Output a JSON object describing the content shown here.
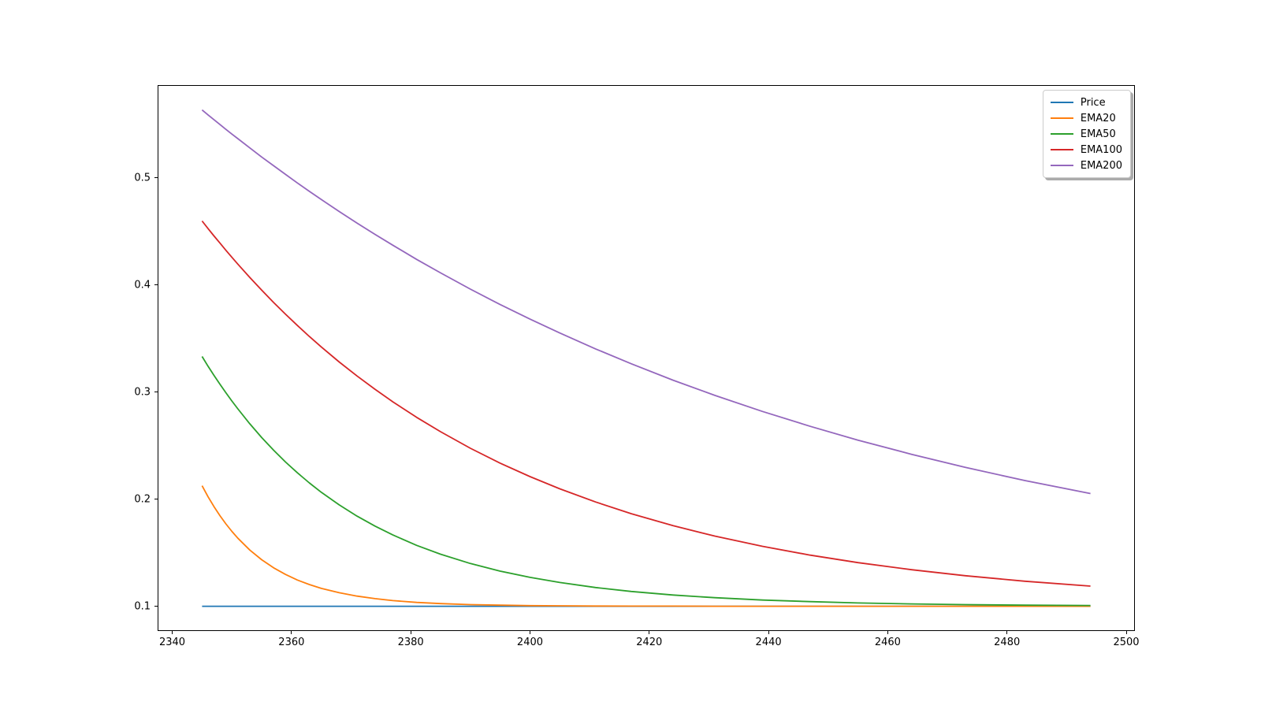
{
  "figure": {
    "background": "#ffffff",
    "spine_color": "#000000",
    "tick_color": "#000000",
    "tick_label_color": "#000000",
    "legend_border_color": "#cccccc",
    "legend_shadow_color": "#ababab",
    "legend_background": "#ffffff"
  },
  "chart_data": {
    "type": "line",
    "title": "",
    "xlabel": "",
    "ylabel": "",
    "grid": false,
    "legend_position": "upper-right",
    "xlim": [
      2337.55,
      2501.45
    ],
    "ylim": [
      0.0769,
      0.5864
    ],
    "x_ticks": [
      {
        "value": 2340,
        "label": "2340"
      },
      {
        "value": 2360,
        "label": "2360"
      },
      {
        "value": 2380,
        "label": "2380"
      },
      {
        "value": 2400,
        "label": "2400"
      },
      {
        "value": 2420,
        "label": "2420"
      },
      {
        "value": 2440,
        "label": "2440"
      },
      {
        "value": 2460,
        "label": "2460"
      },
      {
        "value": 2480,
        "label": "2480"
      },
      {
        "value": 2500,
        "label": "2500"
      }
    ],
    "y_ticks": [
      {
        "value": 0.1,
        "label": "0.1"
      },
      {
        "value": 0.2,
        "label": "0.2"
      },
      {
        "value": 0.3,
        "label": "0.3"
      },
      {
        "value": 0.4,
        "label": "0.4"
      },
      {
        "value": 0.5,
        "label": "0.5"
      }
    ],
    "x": [
      2345,
      2346,
      2347,
      2348,
      2349,
      2350,
      2351,
      2353,
      2355,
      2357,
      2359,
      2361,
      2363,
      2365,
      2368,
      2371,
      2374,
      2377,
      2381,
      2385,
      2390,
      2395,
      2400,
      2405,
      2411,
      2417,
      2424,
      2431,
      2439,
      2447,
      2455,
      2464,
      2473,
      2483,
      2494
    ],
    "series": [
      {
        "name": "Price",
        "color": "#1f77b4",
        "values": [
          0.1,
          0.1,
          0.1,
          0.1,
          0.1,
          0.1,
          0.1,
          0.1,
          0.1,
          0.1,
          0.1,
          0.1,
          0.1,
          0.1,
          0.1,
          0.1,
          0.1,
          0.1,
          0.1,
          0.1,
          0.1,
          0.1,
          0.1,
          0.1,
          0.1,
          0.1,
          0.1,
          0.1,
          0.1,
          0.1,
          0.1,
          0.1,
          0.1,
          0.1,
          0.1
        ]
      },
      {
        "name": "EMA20",
        "color": "#ff7f0e",
        "values": [
          0.2125,
          0.2023,
          0.193,
          0.1845,
          0.1769,
          0.1699,
          0.1635,
          0.1525,
          0.1434,
          0.1359,
          0.1297,
          0.1245,
          0.1203,
          0.1167,
          0.1126,
          0.1095,
          0.1071,
          0.1053,
          0.1036,
          0.1025,
          0.1015,
          0.101,
          0.1006,
          0.1004,
          0.1002,
          0.1001,
          0.1001,
          0.1,
          0.1,
          0.1,
          0.1,
          0.1,
          0.1,
          0.1,
          0.1
        ]
      },
      {
        "name": "EMA50",
        "color": "#2ca02c",
        "values": [
          0.3331,
          0.3241,
          0.3155,
          0.3072,
          0.2993,
          0.2916,
          0.2842,
          0.2703,
          0.2575,
          0.2456,
          0.2346,
          0.2245,
          0.2151,
          0.2064,
          0.1946,
          0.1841,
          0.1748,
          0.1665,
          0.1568,
          0.1486,
          0.1399,
          0.1328,
          0.127,
          0.1222,
          0.1175,
          0.1138,
          0.1105,
          0.108,
          0.1058,
          0.1043,
          0.1031,
          0.1022,
          0.1015,
          0.101,
          0.1007
        ]
      },
      {
        "name": "EMA100",
        "color": "#d62728",
        "values": [
          0.4596,
          0.4525,
          0.4456,
          0.4389,
          0.4322,
          0.4257,
          0.4193,
          0.4069,
          0.395,
          0.3835,
          0.3725,
          0.362,
          0.3518,
          0.342,
          0.328,
          0.3149,
          0.3025,
          0.2908,
          0.2763,
          0.2629,
          0.2475,
          0.2336,
          0.221,
          0.2096,
          0.1973,
          0.1864,
          0.1752,
          0.1655,
          0.1559,
          0.1477,
          0.1407,
          0.1341,
          0.1285,
          0.1234,
          0.1188
        ]
      },
      {
        "name": "EMA200",
        "color": "#9467bd",
        "values": [
          0.5632,
          0.5586,
          0.5541,
          0.5496,
          0.5451,
          0.5407,
          0.5364,
          0.5278,
          0.5193,
          0.5111,
          0.503,
          0.495,
          0.4872,
          0.4796,
          0.4684,
          0.4576,
          0.4471,
          0.4369,
          0.4237,
          0.4111,
          0.396,
          0.3816,
          0.368,
          0.355,
          0.3402,
          0.3263,
          0.311,
          0.2968,
          0.2818,
          0.2679,
          0.255,
          0.2418,
          0.2296,
          0.2173,
          0.2052
        ]
      }
    ]
  }
}
